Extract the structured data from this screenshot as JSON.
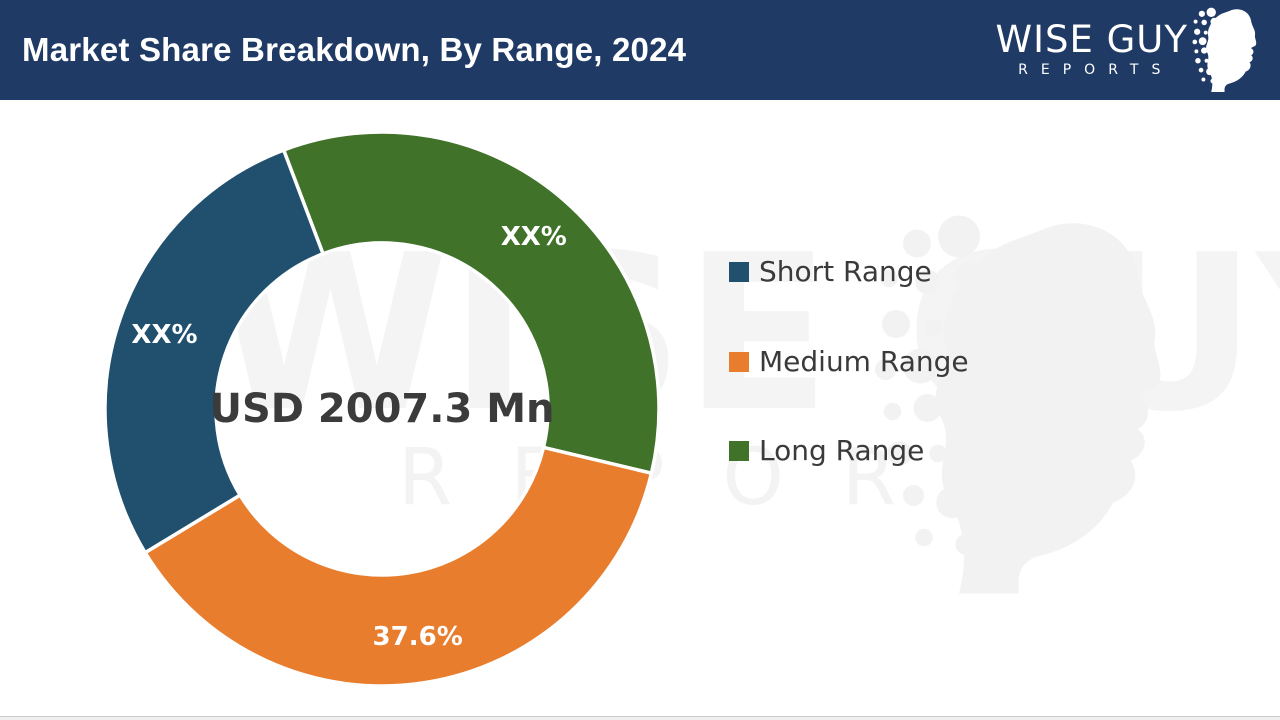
{
  "header": {
    "title": "Market Share Breakdown, By Range, 2024",
    "bg_color": "#203a66",
    "logo": {
      "line1": "WISE GUY",
      "line2": "REPORTS"
    }
  },
  "chart_data": {
    "type": "pie",
    "subtype": "donut",
    "title": "Market Share Breakdown, By Range, 2024",
    "center_label": "USD 2007.3 Mn",
    "start_angle_deg": -20.8,
    "slices": [
      {
        "label": "Long Range",
        "value": 34.5,
        "display": "XX%",
        "color": "#41722a"
      },
      {
        "label": "Medium Range",
        "value": 37.6,
        "display": "37.6%",
        "color": "#e87d2e"
      },
      {
        "label": "Short Range",
        "value": 27.9,
        "display": "XX%",
        "color": "#20506e"
      }
    ],
    "legend": [
      {
        "label": "Short Range",
        "color": "#20506e"
      },
      {
        "label": "Medium Range",
        "color": "#e87d2e"
      },
      {
        "label": "Long Range",
        "color": "#41722a"
      }
    ],
    "legend_position": "right",
    "label_text_color": "#ffffff",
    "center_text_color": "#3b3b3b"
  },
  "watermark": {
    "line1": "WISE GUY",
    "line2": "REPORTS"
  }
}
